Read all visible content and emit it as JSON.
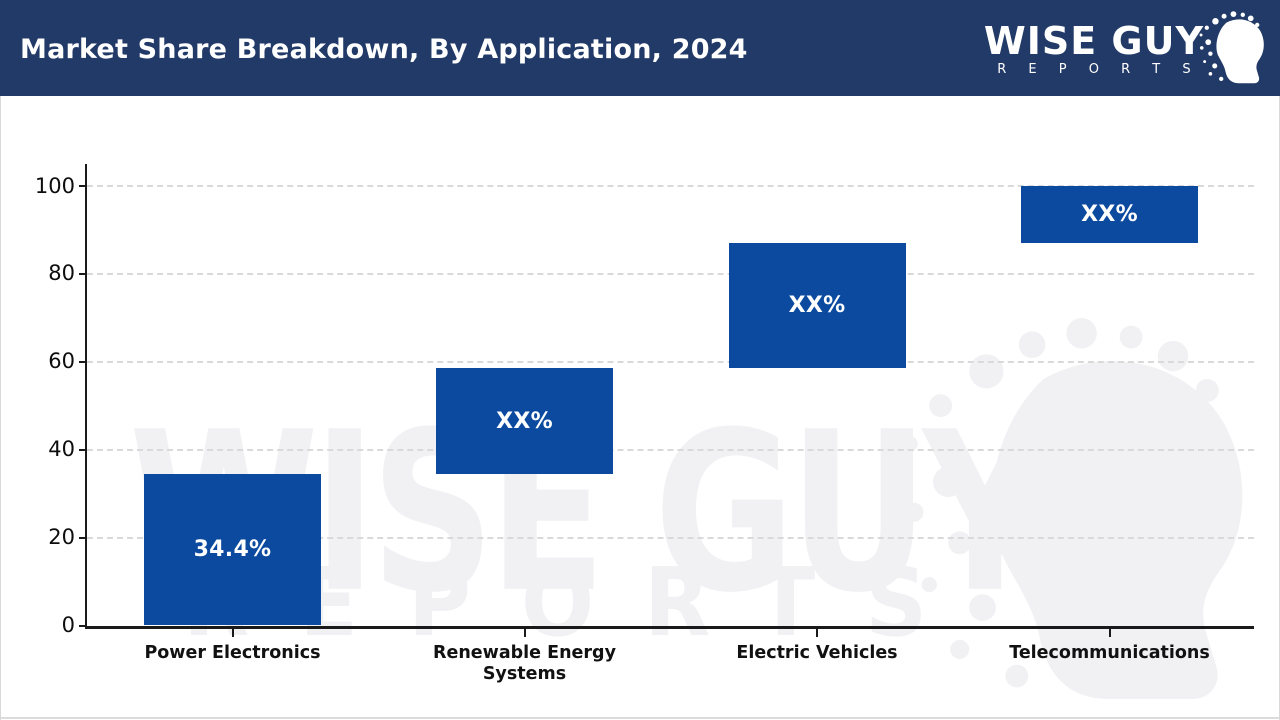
{
  "header": {
    "title": "Market Share Breakdown, By Application, 2024",
    "logo": {
      "line1": "WISE GUY",
      "line2": "R E P O R T S"
    }
  },
  "watermark": {
    "line1": "WISE GUY",
    "line2": "REPORTS"
  },
  "chart_data": {
    "type": "bar",
    "subtype": "waterfall",
    "title": "Market Share Breakdown, By Application, 2024",
    "categories": [
      "Power Electronics",
      "Renewable Energy Systems",
      "Electric Vehicles",
      "Telecommunications"
    ],
    "series": [
      {
        "name": "Market Share",
        "segments": [
          {
            "category": "Power Electronics",
            "start": 0,
            "end": 34.4,
            "value": 34.4,
            "label": "34.4%"
          },
          {
            "category": "Renewable Energy Systems",
            "start": 34.4,
            "end": 58.6,
            "value": 24.2,
            "label": "XX%"
          },
          {
            "category": "Electric Vehicles",
            "start": 58.6,
            "end": 87.0,
            "value": 28.4,
            "label": "XX%"
          },
          {
            "category": "Telecommunications",
            "start": 87.0,
            "end": 100,
            "value": 13.0,
            "label": "XX%"
          }
        ]
      }
    ],
    "xlabel": "",
    "ylabel": "",
    "ylim": [
      0,
      100
    ],
    "yticks": [
      0,
      20,
      40,
      60,
      80,
      100
    ],
    "grid": "horizontal dashed",
    "legend": "none",
    "bar_color": "#0b4a9f",
    "bar_label_color": "#ffffff",
    "note": "Floating waterfall bars; only first segment value shown, others masked as XX%"
  },
  "colors": {
    "header_bg": "#223a67",
    "bar_blue": "#0b4a9f",
    "gridline": "#d9d9d9",
    "axis": "#1a1a1a",
    "watermark": "#f1f1f4",
    "text_dark": "#111111",
    "text_white": "#ffffff"
  }
}
